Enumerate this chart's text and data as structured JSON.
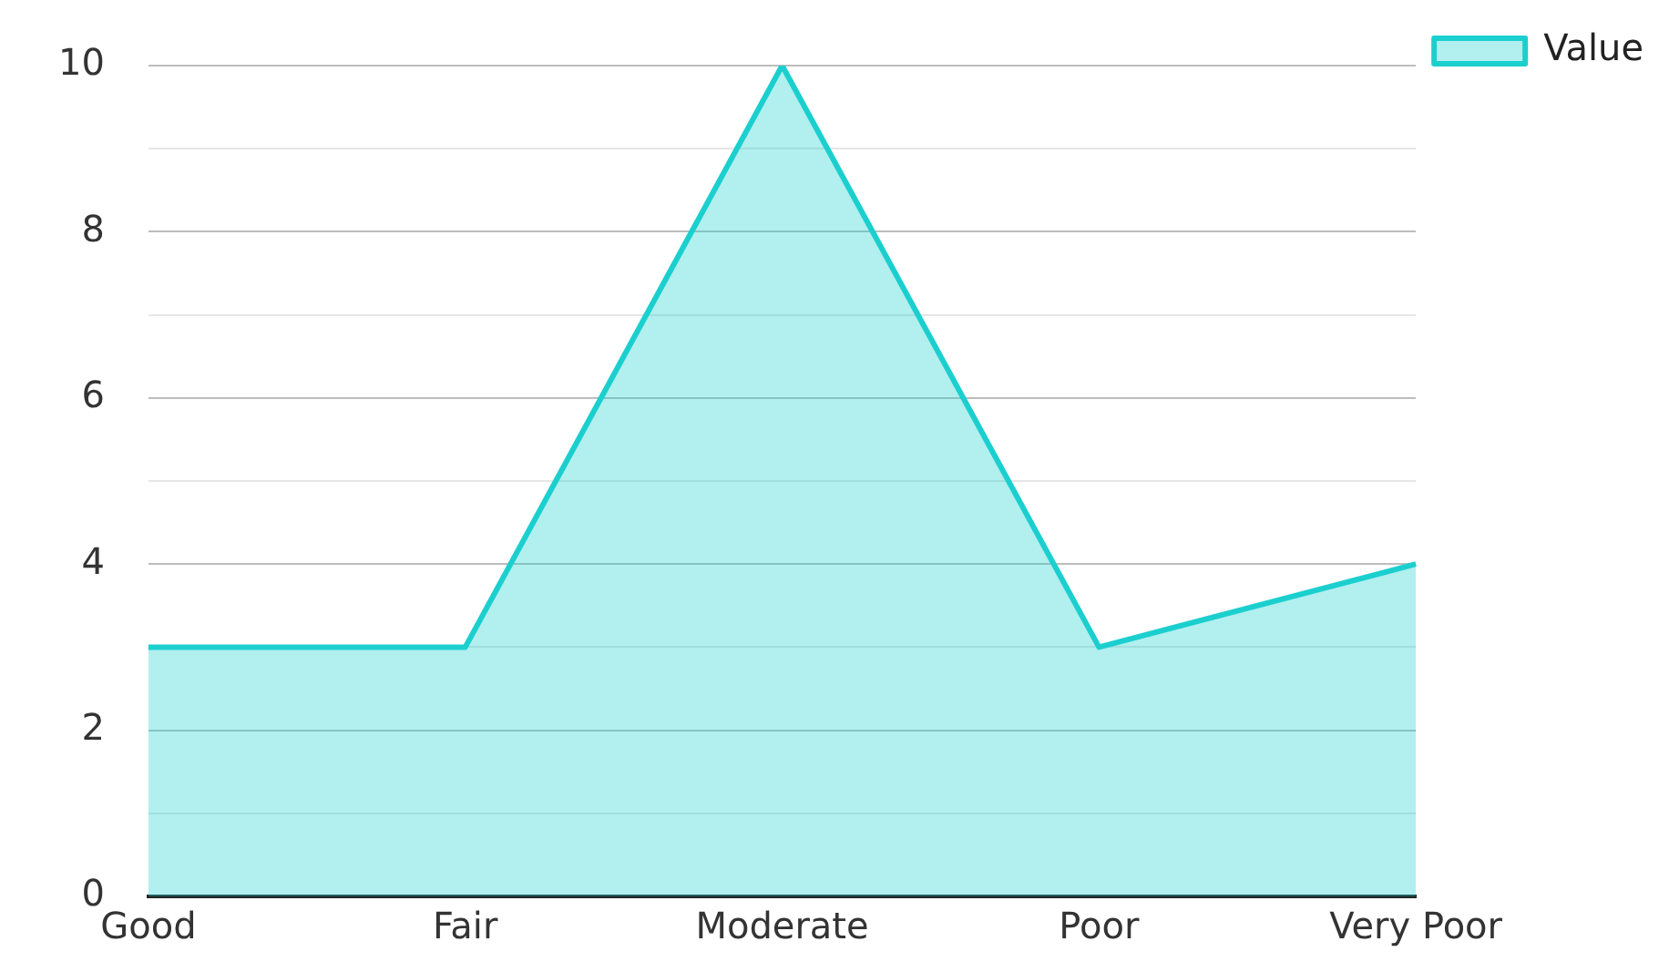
{
  "chart_data": {
    "type": "area",
    "categories": [
      "Good",
      "Fair",
      "Moderate",
      "Poor",
      "Very Poor"
    ],
    "series": [
      {
        "name": "Value",
        "color": "#1ccfcf",
        "values": [
          3,
          3,
          10,
          3,
          4
        ]
      }
    ],
    "ylim": [
      0,
      10
    ],
    "yticks": [
      0,
      {
        "value": 1,
        "label": null
      },
      2,
      {
        "value": 3,
        "label": null
      },
      4,
      {
        "value": 5,
        "label": null
      },
      6,
      {
        "value": 7,
        "label": null
      },
      8,
      {
        "value": 9,
        "label": null
      },
      10
    ],
    "grid": "y",
    "legend": "top right",
    "marker": "none"
  }
}
